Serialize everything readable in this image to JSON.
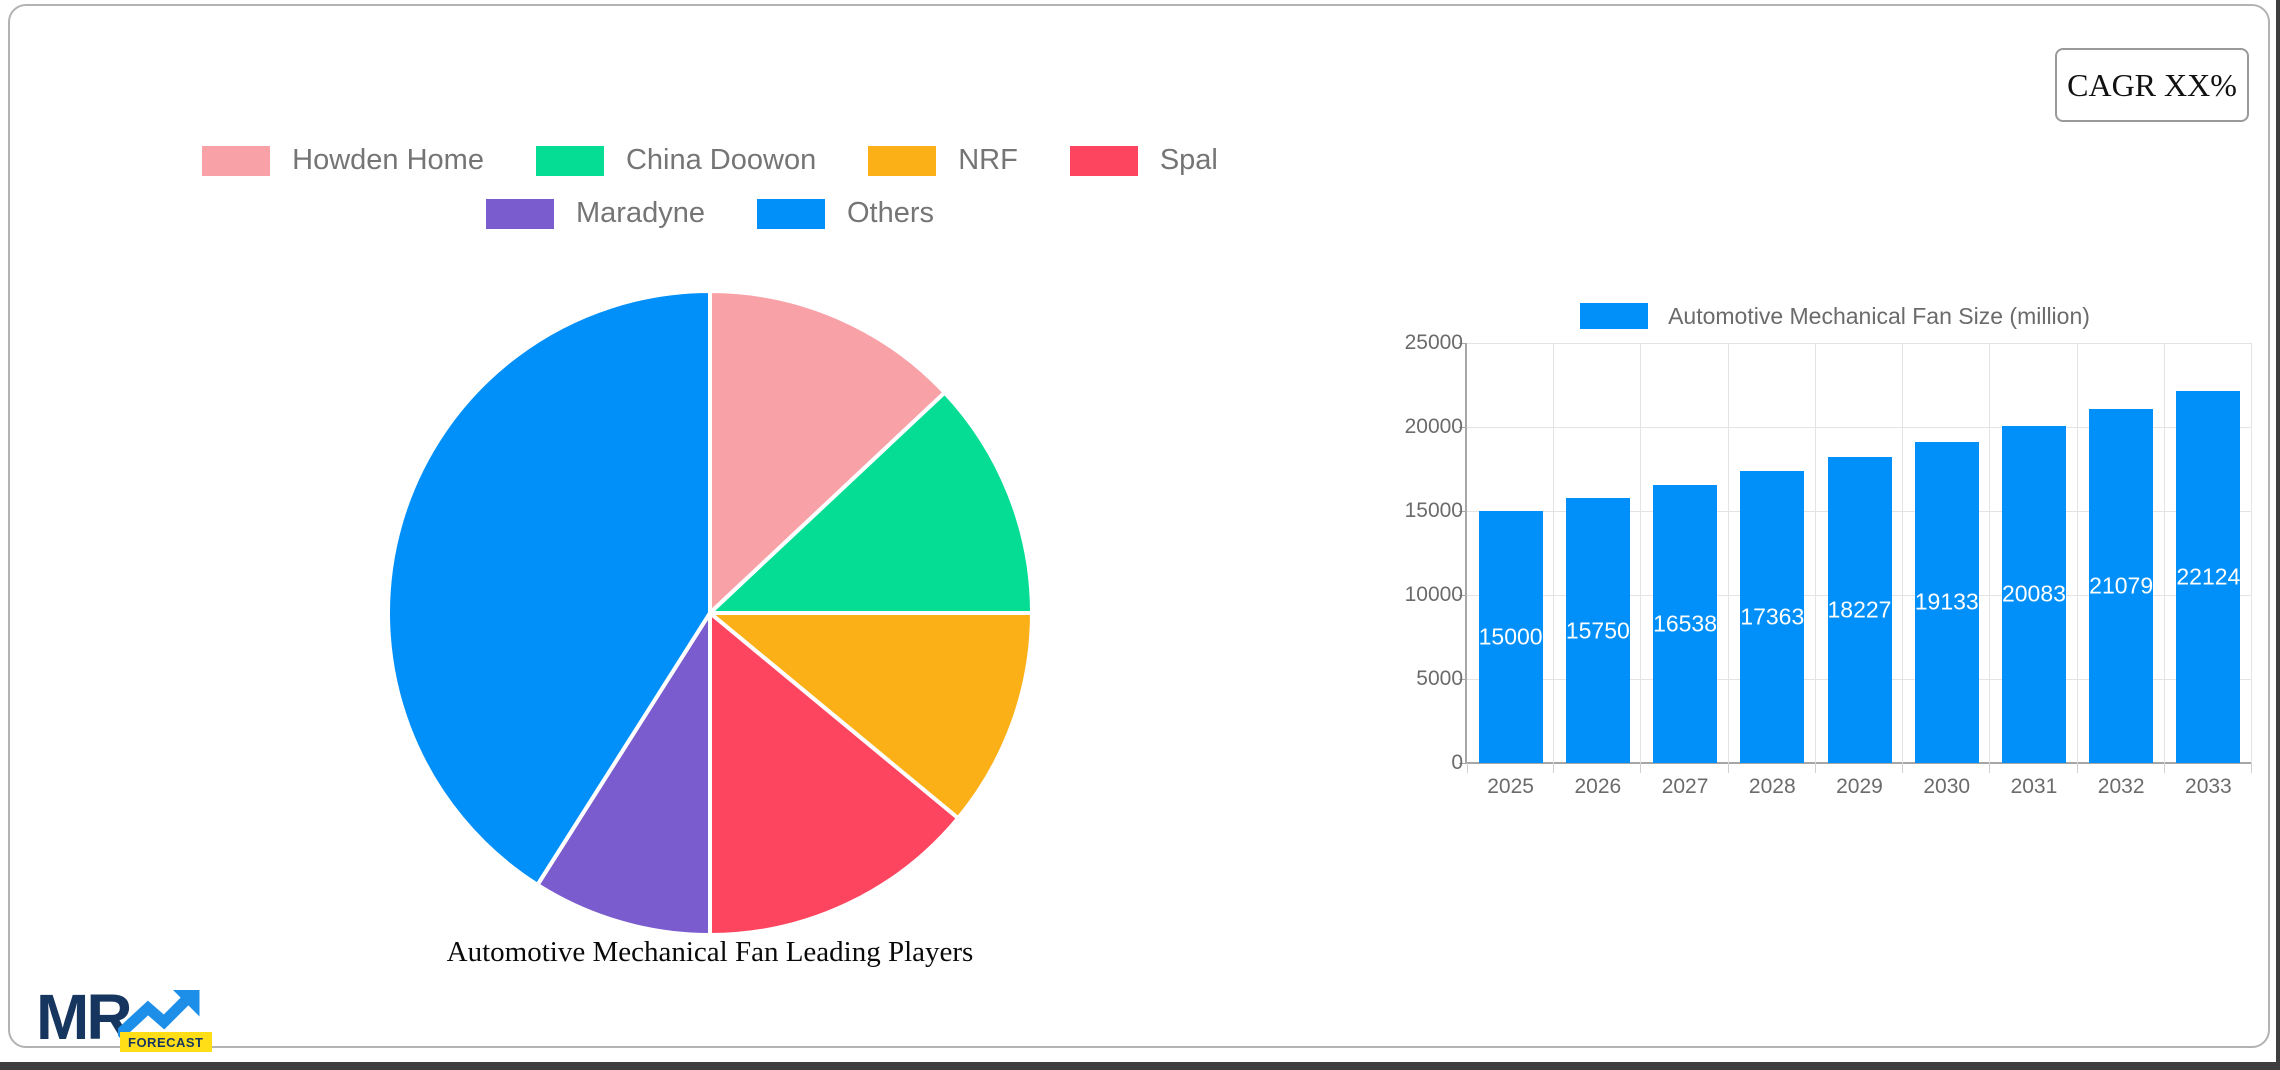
{
  "cagr_box": {
    "label": "CAGR XX%"
  },
  "logo": {
    "text": "MR",
    "tag": "FORECAST"
  },
  "colors": {
    "accent_blue": "#0190FA",
    "pink": "#F8A1A7",
    "green": "#04DD93",
    "orange": "#FCB017",
    "red": "#FE4560",
    "purple": "#7A5CCE",
    "legend_text": "#757575",
    "axis_text": "#6B6B6B",
    "grid": "#E3E3E3",
    "axis_line": "#A6A6A6",
    "logo_navy": "#17365F",
    "logo_yellow": "#FFDE17",
    "logo_arrow": "#1E8FE8"
  },
  "chart_data": [
    {
      "type": "pie",
      "title": "Automotive Mechanical Fan Leading Players",
      "labels": [
        "Howden Home",
        "China Doowon",
        "NRF",
        "Spal",
        "Maradyne",
        "Others"
      ],
      "values_percent_estimated": [
        13,
        12,
        11,
        14,
        9,
        41
      ],
      "colors": [
        "#F8A1A7",
        "#04DD93",
        "#FCB017",
        "#FE4560",
        "#7A5CCE",
        "#0190FA"
      ],
      "start_angle_deg": 0,
      "direction": "clockwise",
      "legend_position": "top",
      "slice_border_color": "#FFFFFF"
    },
    {
      "type": "bar",
      "legend": "Automotive Mechanical Fan Size (million)",
      "categories": [
        "2025",
        "2026",
        "2027",
        "2028",
        "2029",
        "2030",
        "2031",
        "2032",
        "2033"
      ],
      "values": [
        15000,
        15750,
        16538,
        17363,
        18227,
        19133,
        20083,
        21079,
        22124
      ],
      "bar_color": "#0190FA",
      "ylim": [
        0,
        25000
      ],
      "y_ticks": [
        0,
        5000,
        10000,
        15000,
        20000,
        25000
      ],
      "grid": true,
      "value_labels": "white-inside-center"
    }
  ]
}
